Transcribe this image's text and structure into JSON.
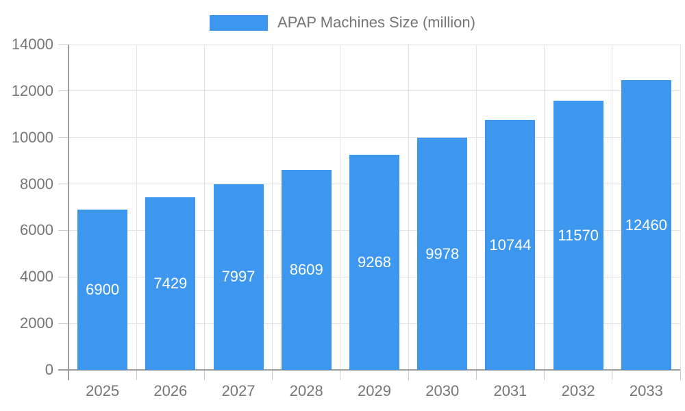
{
  "chart_data": {
    "type": "bar",
    "title": "",
    "legend": "APAP Machines Size (million)",
    "legend_position": "top",
    "categories": [
      "2025",
      "2026",
      "2027",
      "2028",
      "2029",
      "2030",
      "2031",
      "2032",
      "2033"
    ],
    "values": [
      6900,
      7429,
      7997,
      8609,
      9268,
      9978,
      10744,
      11570,
      12460
    ],
    "xlabel": "",
    "ylabel": "",
    "ylim": [
      0,
      14000
    ],
    "yticks": [
      0,
      2000,
      4000,
      6000,
      8000,
      10000,
      12000,
      14000
    ],
    "grid": true,
    "bar_labels_visible": true
  },
  "colors": {
    "bar_fill": "#3e97ee",
    "bar_value_text": "#ffffff",
    "axis_text": "#757575",
    "legend_text": "#757575",
    "gridline": "#e3e3e3",
    "tick": "#c9c9c9",
    "axis_line": "#9e9e9e",
    "background": "#ffffff"
  }
}
